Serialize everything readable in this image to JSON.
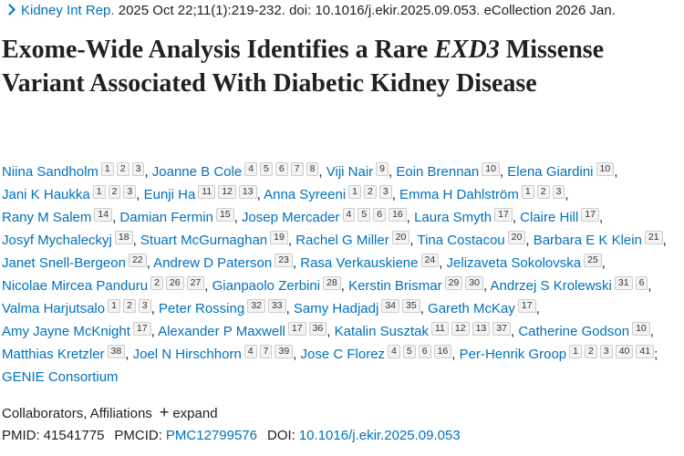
{
  "citation": {
    "journal": "Kidney Int Rep.",
    "details": "2025 Oct 22;11(1):219-232. doi: 10.1016/j.ekir.2025.09.053. eCollection 2026 Jan."
  },
  "title": {
    "before": "Exome-Wide Analysis Identifies a Rare ",
    "gene": "EXD3",
    "after": " Missense Variant Associated With Diabetic Kidney Disease"
  },
  "author_separator": ",",
  "consortium_separator": ";",
  "authors": [
    {
      "name": "Niina Sandholm",
      "affiliations": [
        1,
        2,
        3
      ]
    },
    {
      "name": "Joanne B Cole",
      "affiliations": [
        4,
        5,
        6,
        7,
        8
      ]
    },
    {
      "name": "Viji Nair",
      "affiliations": [
        9
      ]
    },
    {
      "name": "Eoin Brennan",
      "affiliations": [
        10
      ]
    },
    {
      "name": "Elena Giardini",
      "affiliations": [
        10
      ]
    },
    {
      "name": "Jani K Haukka",
      "affiliations": [
        1,
        2,
        3
      ]
    },
    {
      "name": "Eunji Ha",
      "affiliations": [
        11,
        12,
        13
      ]
    },
    {
      "name": "Anna Syreeni",
      "affiliations": [
        1,
        2,
        3
      ]
    },
    {
      "name": "Emma H Dahlström",
      "affiliations": [
        1,
        2,
        3
      ]
    },
    {
      "name": "Rany M Salem",
      "affiliations": [
        14
      ]
    },
    {
      "name": "Damian Fermin",
      "affiliations": [
        15
      ]
    },
    {
      "name": "Josep Mercader",
      "affiliations": [
        4,
        5,
        6,
        16
      ]
    },
    {
      "name": "Laura Smyth",
      "affiliations": [
        17
      ]
    },
    {
      "name": "Claire Hill",
      "affiliations": [
        17
      ]
    },
    {
      "name": "Josyf Mychaleckyj",
      "affiliations": [
        18
      ]
    },
    {
      "name": "Stuart McGurnaghan",
      "affiliations": [
        19
      ]
    },
    {
      "name": "Rachel G Miller",
      "affiliations": [
        20
      ]
    },
    {
      "name": "Tina Costacou",
      "affiliations": [
        20
      ]
    },
    {
      "name": "Barbara E K Klein",
      "affiliations": [
        21
      ]
    },
    {
      "name": "Janet Snell-Bergeon",
      "affiliations": [
        22
      ]
    },
    {
      "name": "Andrew D Paterson",
      "affiliations": [
        23
      ]
    },
    {
      "name": "Rasa Verkauskiene",
      "affiliations": [
        24
      ]
    },
    {
      "name": "Jelizaveta Sokolovska",
      "affiliations": [
        25
      ]
    },
    {
      "name": "Nicolae Mircea Panduru",
      "affiliations": [
        2,
        26,
        27
      ]
    },
    {
      "name": "Gianpaolo Zerbini",
      "affiliations": [
        28
      ]
    },
    {
      "name": "Kerstin Brismar",
      "affiliations": [
        29,
        30
      ]
    },
    {
      "name": "Andrzej S Krolewski",
      "affiliations": [
        31,
        6
      ]
    },
    {
      "name": "Valma Harjutsalo",
      "affiliations": [
        1,
        2,
        3
      ]
    },
    {
      "name": "Peter Rossing",
      "affiliations": [
        32,
        33
      ]
    },
    {
      "name": "Samy Hadjadj",
      "affiliations": [
        34,
        35
      ]
    },
    {
      "name": "Gareth McKay",
      "affiliations": [
        17
      ]
    },
    {
      "name": "Amy Jayne McKnight",
      "affiliations": [
        17
      ]
    },
    {
      "name": "Alexander P Maxwell",
      "affiliations": [
        17,
        36
      ]
    },
    {
      "name": "Katalin Susztak",
      "affiliations": [
        11,
        12,
        13,
        37
      ]
    },
    {
      "name": "Catherine Godson",
      "affiliations": [
        10
      ]
    },
    {
      "name": "Matthias Kretzler",
      "affiliations": [
        38
      ]
    },
    {
      "name": "Joel N Hirschhorn",
      "affiliations": [
        4,
        7,
        39
      ]
    },
    {
      "name": "Jose C Florez",
      "affiliations": [
        4,
        5,
        6,
        16
      ]
    },
    {
      "name": "Per-Henrik Groop",
      "affiliations": [
        1,
        2,
        3,
        40,
        41
      ]
    }
  ],
  "consortium": "GENIE Consortium",
  "expand": {
    "label": "Collaborators, Affiliations",
    "action": "expand"
  },
  "identifiers": [
    {
      "label": "PMID:",
      "value": "41541775"
    },
    {
      "label": "PMCID:",
      "value": "PMC12799576"
    },
    {
      "label": "DOI:",
      "value": "10.1016/j.ekir.2025.09.053"
    }
  ]
}
